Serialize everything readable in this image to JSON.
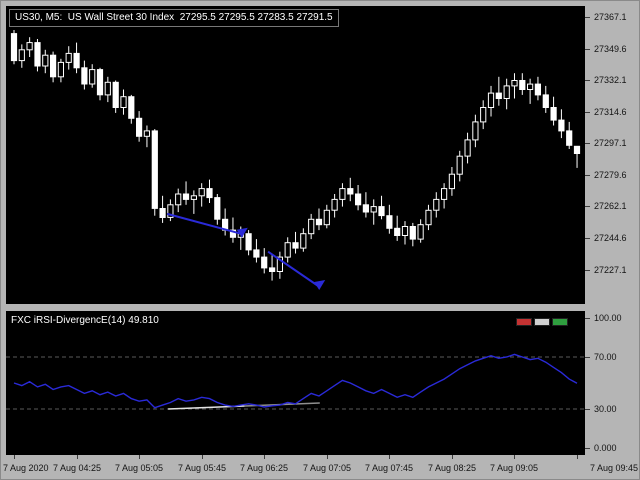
{
  "colors": {
    "frame": "#b5b5b5",
    "chart_bg": "#000000",
    "candle": "#ffffff",
    "signal_blue": "#2a2ad8",
    "level_line": "#5a5a5a",
    "axis_text": "#141414",
    "title_text": "#ffffff"
  },
  "main_chart": {
    "title": "US30, M5:  US Wall Street 30 Index  27295.5 27295.5 27283.5 27291.5"
  },
  "indicator": {
    "title": "FXC iRSI-DivergencE(14) 49.810",
    "brand_blocks": [
      {
        "name": "red",
        "color": "#c43232"
      },
      {
        "name": "silver",
        "color": "#d0d0d0"
      },
      {
        "name": "green",
        "color": "#2f9e3f"
      }
    ]
  },
  "chart_data": [
    {
      "type": "candlestick",
      "title": "US30 M5 - US Wall Street 30 Index",
      "ylim": [
        27208.0,
        27373.3
      ],
      "bars_per_label": 8,
      "x_labels": [
        "7 Aug 2020",
        "7 Aug 04:25",
        "7 Aug 05:05",
        "7 Aug 05:45",
        "7 Aug 06:25",
        "7 Aug 07:05",
        "7 Aug 07:45",
        "7 Aug 08:25",
        "7 Aug 09:05",
        "7 Aug 09:45"
      ],
      "y_ticks": [
        {
          "v": 27367.1,
          "label": "27367.1"
        },
        {
          "v": 27349.6,
          "label": "27349.6"
        },
        {
          "v": 27332.1,
          "label": "27332.1"
        },
        {
          "v": 27314.6,
          "label": "27314.6"
        },
        {
          "v": 27297.1,
          "label": "27297.1"
        },
        {
          "v": 27279.6,
          "label": "27279.6"
        },
        {
          "v": 27262.1,
          "label": "27262.1"
        },
        {
          "v": 27244.6,
          "label": "27244.6"
        },
        {
          "v": 27227.1,
          "label": "27227.1"
        }
      ],
      "ohlc": [
        [
          27358,
          27360,
          27341,
          27343
        ],
        [
          27343,
          27352,
          27339,
          27349
        ],
        [
          27349,
          27356,
          27345,
          27353
        ],
        [
          27353,
          27355,
          27337,
          27340
        ],
        [
          27340,
          27349,
          27336,
          27346
        ],
        [
          27346,
          27348,
          27331,
          27334
        ],
        [
          27334,
          27344,
          27331,
          27342
        ],
        [
          27342,
          27351,
          27338,
          27347
        ],
        [
          27347,
          27353,
          27336,
          27339
        ],
        [
          27339,
          27343,
          27327,
          27330
        ],
        [
          27330,
          27341,
          27328,
          27338
        ],
        [
          27338,
          27339,
          27321,
          27324
        ],
        [
          27324,
          27334,
          27320,
          27331
        ],
        [
          27331,
          27332,
          27314,
          27317
        ],
        [
          27317,
          27327,
          27313,
          27323
        ],
        [
          27323,
          27324,
          27308,
          27311
        ],
        [
          27311,
          27315,
          27298,
          27301
        ],
        [
          27301,
          27307,
          27295,
          27304
        ],
        [
          27304,
          27305,
          27257,
          27261
        ],
        [
          27261,
          27268,
          27253,
          27256
        ],
        [
          27256,
          27266,
          27254,
          27263
        ],
        [
          27263,
          27272,
          27259,
          27269
        ],
        [
          27269,
          27276,
          27263,
          27266
        ],
        [
          27266,
          27271,
          27258,
          27268
        ],
        [
          27268,
          27275,
          27262,
          27272
        ],
        [
          27272,
          27277,
          27264,
          27267
        ],
        [
          27267,
          27269,
          27252,
          27255
        ],
        [
          27255,
          27261,
          27246,
          27249
        ],
        [
          27249,
          27256,
          27242,
          27245
        ],
        [
          27245,
          27251,
          27238,
          27247
        ],
        [
          27247,
          27249,
          27235,
          27238
        ],
        [
          27238,
          27244,
          27231,
          27234
        ],
        [
          27234,
          27239,
          27225,
          27228
        ],
        [
          27228,
          27235,
          27221,
          27226
        ],
        [
          27226,
          27237,
          27222,
          27234
        ],
        [
          27234,
          27245,
          27231,
          27242
        ],
        [
          27242,
          27248,
          27236,
          27239
        ],
        [
          27239,
          27250,
          27237,
          27247
        ],
        [
          27247,
          27258,
          27244,
          27255
        ],
        [
          27255,
          27261,
          27249,
          27252
        ],
        [
          27252,
          27263,
          27250,
          27260
        ],
        [
          27260,
          27269,
          27256,
          27266
        ],
        [
          27266,
          27275,
          27262,
          27272
        ],
        [
          27272,
          27278,
          27265,
          27269
        ],
        [
          27269,
          27274,
          27260,
          27263
        ],
        [
          27263,
          27270,
          27256,
          27259
        ],
        [
          27259,
          27266,
          27252,
          27262
        ],
        [
          27262,
          27268,
          27255,
          27257
        ],
        [
          27257,
          27263,
          27247,
          27250
        ],
        [
          27250,
          27257,
          27243,
          27246
        ],
        [
          27246,
          27254,
          27241,
          27251
        ],
        [
          27251,
          27253,
          27240,
          27244
        ],
        [
          27244,
          27255,
          27242,
          27252
        ],
        [
          27252,
          27263,
          27249,
          27260
        ],
        [
          27260,
          27270,
          27256,
          27266
        ],
        [
          27266,
          27275,
          27261,
          27272
        ],
        [
          27272,
          27284,
          27268,
          27280
        ],
        [
          27280,
          27293,
          27276,
          27290
        ],
        [
          27290,
          27303,
          27286,
          27299
        ],
        [
          27299,
          27313,
          27295,
          27309
        ],
        [
          27309,
          27321,
          27305,
          27317
        ],
        [
          27317,
          27329,
          27312,
          27325
        ],
        [
          27325,
          27334,
          27318,
          27322
        ],
        [
          27322,
          27333,
          27316,
          27329
        ],
        [
          27329,
          27336,
          27322,
          27332
        ],
        [
          27332,
          27336,
          27324,
          27327
        ],
        [
          27327,
          27333,
          27319,
          27330
        ],
        [
          27330,
          27334,
          27321,
          27324
        ],
        [
          27324,
          27329,
          27314,
          27317
        ],
        [
          27317,
          27323,
          27307,
          27310
        ],
        [
          27310,
          27316,
          27300,
          27304
        ],
        [
          27304,
          27309,
          27294,
          27296
        ],
        [
          27295.5,
          27295.5,
          27283.5,
          27291.5
        ]
      ],
      "arrows": [
        {
          "from_bar": 19.6,
          "from_price": 27258,
          "to_bar": 29,
          "to_price": 27247
        },
        {
          "from_bar": 32.5,
          "from_price": 27237,
          "to_bar": 38.9,
          "to_price": 27218
        }
      ]
    },
    {
      "type": "line",
      "name": "FXC iRSI-DivergencE(14)",
      "current_value": 49.81,
      "ylim": [
        0,
        100
      ],
      "levels": [
        70,
        30
      ],
      "y_ticks": [
        {
          "v": 100,
          "label": "100.00"
        },
        {
          "v": 70,
          "label": "70.00"
        },
        {
          "v": 30,
          "label": "30.00"
        },
        {
          "v": 0,
          "label": "0.000"
        }
      ],
      "values": [
        50,
        48,
        51,
        47,
        49,
        45,
        47,
        48,
        45,
        42,
        44,
        41,
        43,
        40,
        42,
        38,
        36,
        37,
        31,
        33,
        35,
        38,
        36,
        37,
        39,
        38,
        35,
        33,
        32,
        33,
        34,
        33,
        31.5,
        32.5,
        33,
        35,
        34,
        38,
        42,
        40,
        44,
        48,
        52,
        50,
        47,
        44,
        42,
        45,
        42,
        39,
        41,
        39,
        43,
        47,
        50,
        53,
        57,
        61,
        64,
        67,
        69,
        71,
        69,
        70,
        72,
        70,
        68,
        69,
        66,
        62,
        58,
        53,
        49.81
      ],
      "divergence_segments": [
        {
          "from_bar": 19.7,
          "from_value": 30,
          "to_bar": 29.5,
          "to_value": 32.3,
          "color": "#e2e2e2"
        },
        {
          "from_bar": 29.5,
          "from_value": 32.3,
          "to_bar": 39.1,
          "to_value": 34.6,
          "color": "#8f8f8f"
        }
      ]
    }
  ]
}
